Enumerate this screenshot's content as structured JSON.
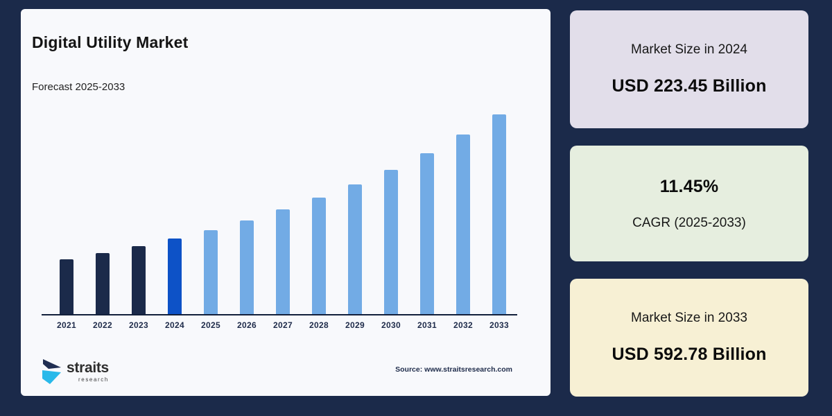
{
  "colors": {
    "page-bg": "#1b2a4a",
    "panel-bg": "#f8f9fc",
    "axis-line": "#121f3a",
    "text-primary": "#141414",
    "text-navy": "#1e2b4a",
    "card-2024-bg": "#e2deea",
    "card-cagr-bg": "#e6eedf",
    "card-2033-bg": "#f7f0d4",
    "logo-navy": "#202e52",
    "logo-cyan": "#29b9ea"
  },
  "chart": {
    "source": "Source: www.straitsresearch.com"
  },
  "chart_data": {
    "type": "bar",
    "title": "Digital Utility Market",
    "subtitle": "Forecast 2025-2033",
    "unit": "USD Billion",
    "categories": [
      "2021",
      "2022",
      "2023",
      "2024",
      "2025",
      "2026",
      "2027",
      "2028",
      "2029",
      "2030",
      "2031",
      "2032",
      "2033"
    ],
    "values": [
      161.41,
      179.89,
      200.49,
      223.45,
      249.04,
      277.55,
      309.33,
      344.75,
      384.22,
      428.21,
      477.24,
      531.89,
      592.78
    ],
    "segments": [
      "historical",
      "historical",
      "historical",
      "current",
      "forecast",
      "forecast",
      "forecast",
      "forecast",
      "forecast",
      "forecast",
      "forecast",
      "forecast",
      "forecast"
    ],
    "colors_by_segment": {
      "historical": "#1b2a4a",
      "current": "#0d52c7",
      "forecast": "#72abe5"
    },
    "labeled_values": {
      "2024": 223.45,
      "2033": 592.78
    },
    "cagr_percent": 11.45,
    "xlabel": "",
    "ylabel": "",
    "ylim": [
      0,
      600
    ],
    "grid": false,
    "y_axis_visible": false,
    "legend": "none"
  },
  "stats_cards": {
    "market_2024": {
      "label": "Market Size in 2024",
      "value": "USD 223.45 Billion"
    },
    "cagr": {
      "value": "11.45%",
      "label": "CAGR (2025-2033)"
    },
    "market_2033": {
      "label": "Market Size in 2033",
      "value": "USD 592.78 Billion"
    }
  },
  "logo": {
    "name": "straits",
    "tagline": "research",
    "mark_icon": "straits-logo-mark"
  }
}
